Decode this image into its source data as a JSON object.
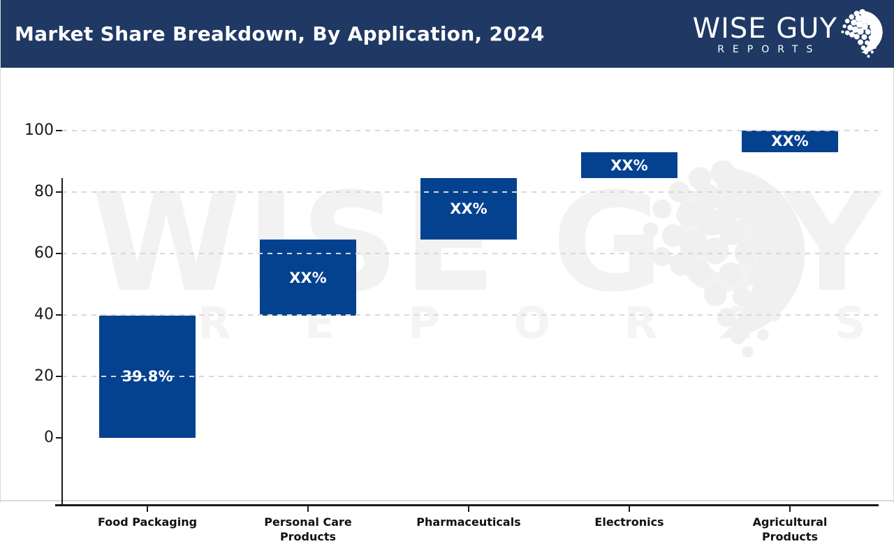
{
  "header": {
    "title": "Market Share Breakdown, By Application, 2024"
  },
  "logo": {
    "line1": "WISE GUY",
    "line2": "REPORTS"
  },
  "watermark": {
    "line1": "WISE GUY",
    "line2": "R E P O R T S"
  },
  "chart_data": {
    "type": "bar",
    "subtype": "waterfall-stacked-percentage",
    "title": "Market Share Breakdown, By Application, 2024",
    "categories": [
      "Food Packaging",
      "Personal Care Products",
      "Pharmaceuticals",
      "Electronics",
      "Agricultural Products"
    ],
    "categories_lines": [
      [
        "Food Packaging"
      ],
      [
        "Personal Care",
        "Products"
      ],
      [
        "Pharmaceuticals"
      ],
      [
        "Electronics"
      ],
      [
        "Agricultural",
        "Products"
      ]
    ],
    "segments": [
      {
        "category": "Food Packaging",
        "start": 0,
        "end": 39.8,
        "value_label": "39.8%"
      },
      {
        "category": "Personal Care Products",
        "start": 39.8,
        "end": 64.5,
        "value_label": "XX%"
      },
      {
        "category": "Pharmaceuticals",
        "start": 64.5,
        "end": 84.5,
        "value_label": "XX%"
      },
      {
        "category": "Electronics",
        "start": 84.5,
        "end": 93.0,
        "value_label": "XX%"
      },
      {
        "category": "Agricultural Products",
        "start": 93.0,
        "end": 100.0,
        "value_label": "XX%"
      }
    ],
    "yticks": [
      0,
      20,
      40,
      60,
      80,
      100
    ],
    "ylim": [
      0,
      107
    ],
    "xlabel": "",
    "ylabel": "",
    "grid": "horizontal-dashed",
    "legend": "none",
    "bar_color": "#04418f",
    "bar_label_color": "#ffffff"
  },
  "colors": {
    "header_bg": "#1f3864",
    "bar": "#04418f",
    "grid": "#d8d8d8",
    "axis": "#1a1a1a",
    "watermark": "#f2f2f2"
  }
}
